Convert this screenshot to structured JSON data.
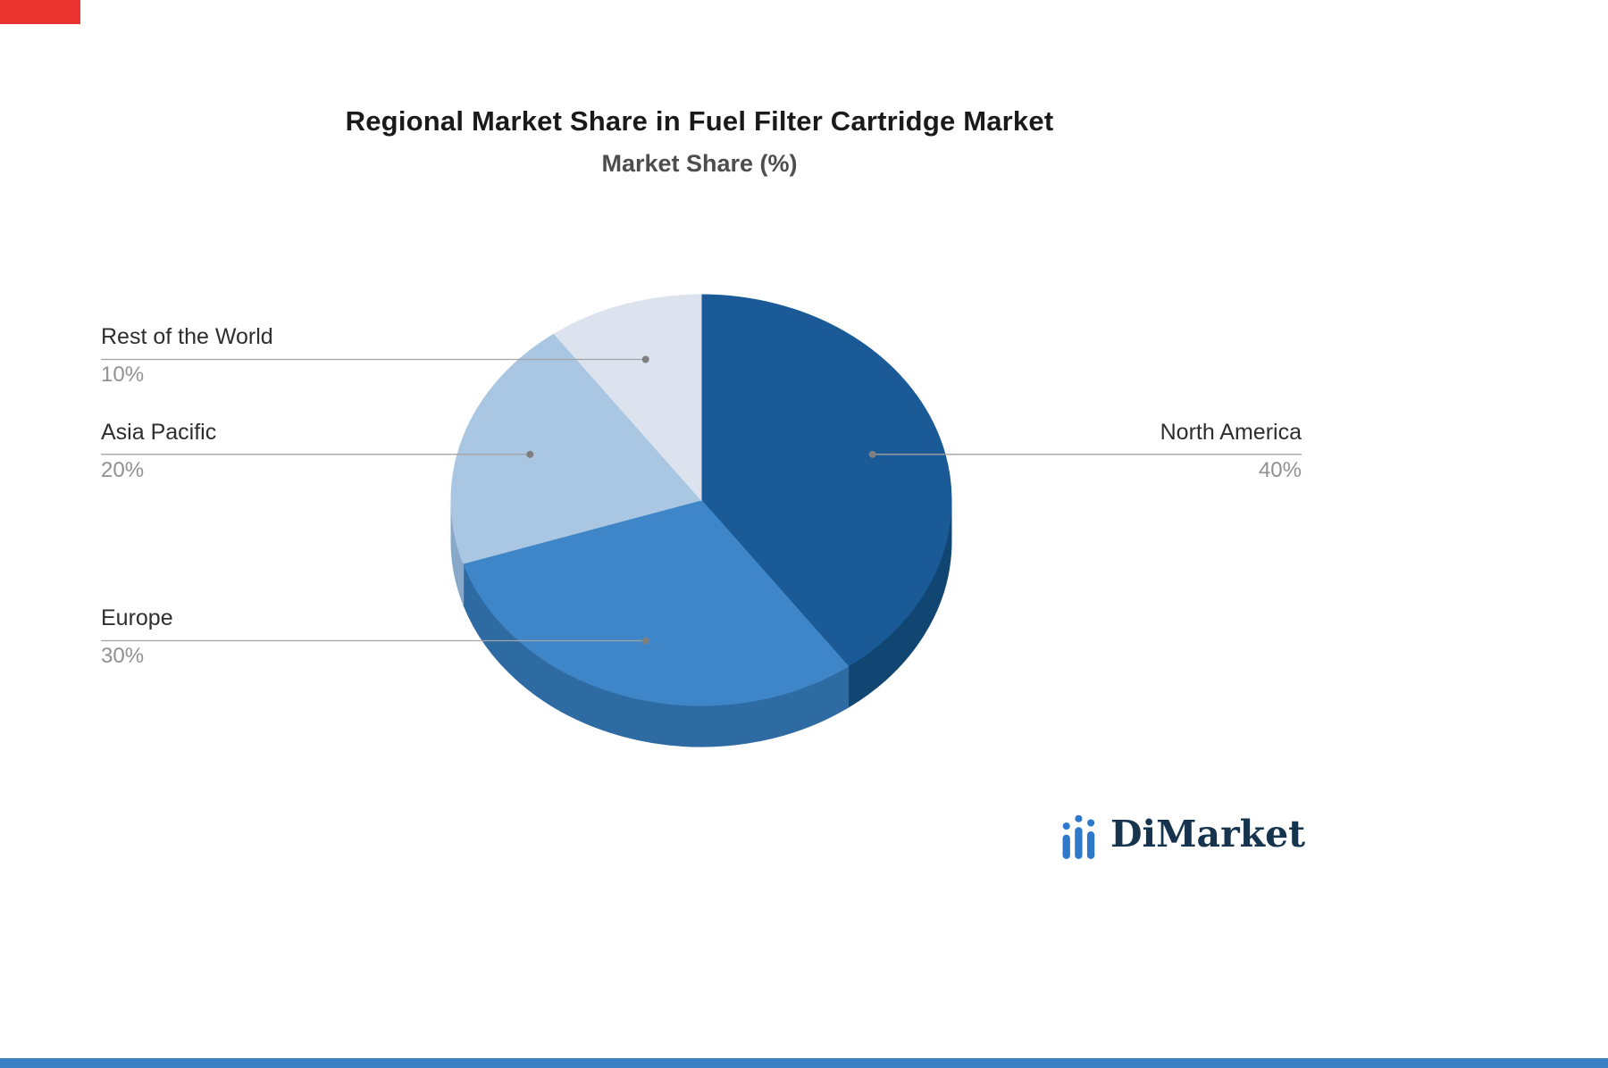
{
  "page": {
    "title": "Regional Market Share in Fuel Filter Cartridge Market",
    "subtitle": "Market Share (%)",
    "brand": "DiMarket"
  },
  "chart_data": {
    "type": "pie",
    "title": "Regional Market Share in Fuel Filter Cartridge Market",
    "subtitle": "Market Share (%)",
    "unit": "%",
    "style": "3d-pie",
    "start_angle_deg": 0,
    "clockwise": true,
    "legend_position": "none",
    "labels": "leader-lines",
    "slices": [
      {
        "label": "North America",
        "value": 40,
        "pct_label": "40%",
        "color": "#1a5a96",
        "side_color": "#124672",
        "label_side": "right"
      },
      {
        "label": "Europe",
        "value": 30,
        "pct_label": "30%",
        "color": "#3f86c8",
        "side_color": "#2e6ba3",
        "label_side": "left"
      },
      {
        "label": "Asia Pacific",
        "value": 20,
        "pct_label": "20%",
        "color": "#a9c6e3",
        "side_color": "#88a8c9",
        "label_side": "left"
      },
      {
        "label": "Rest of the World",
        "value": 10,
        "pct_label": "10%",
        "color": "#dce3ee",
        "side_color": "#b8c2d3",
        "label_side": "left"
      }
    ]
  },
  "accents": {
    "top_left_bar_color": "#e8332e",
    "bottom_bar_color": "#3b80c4",
    "leader_line_color": "#a3a3a3",
    "leader_dot_color": "#7f7f7f"
  }
}
